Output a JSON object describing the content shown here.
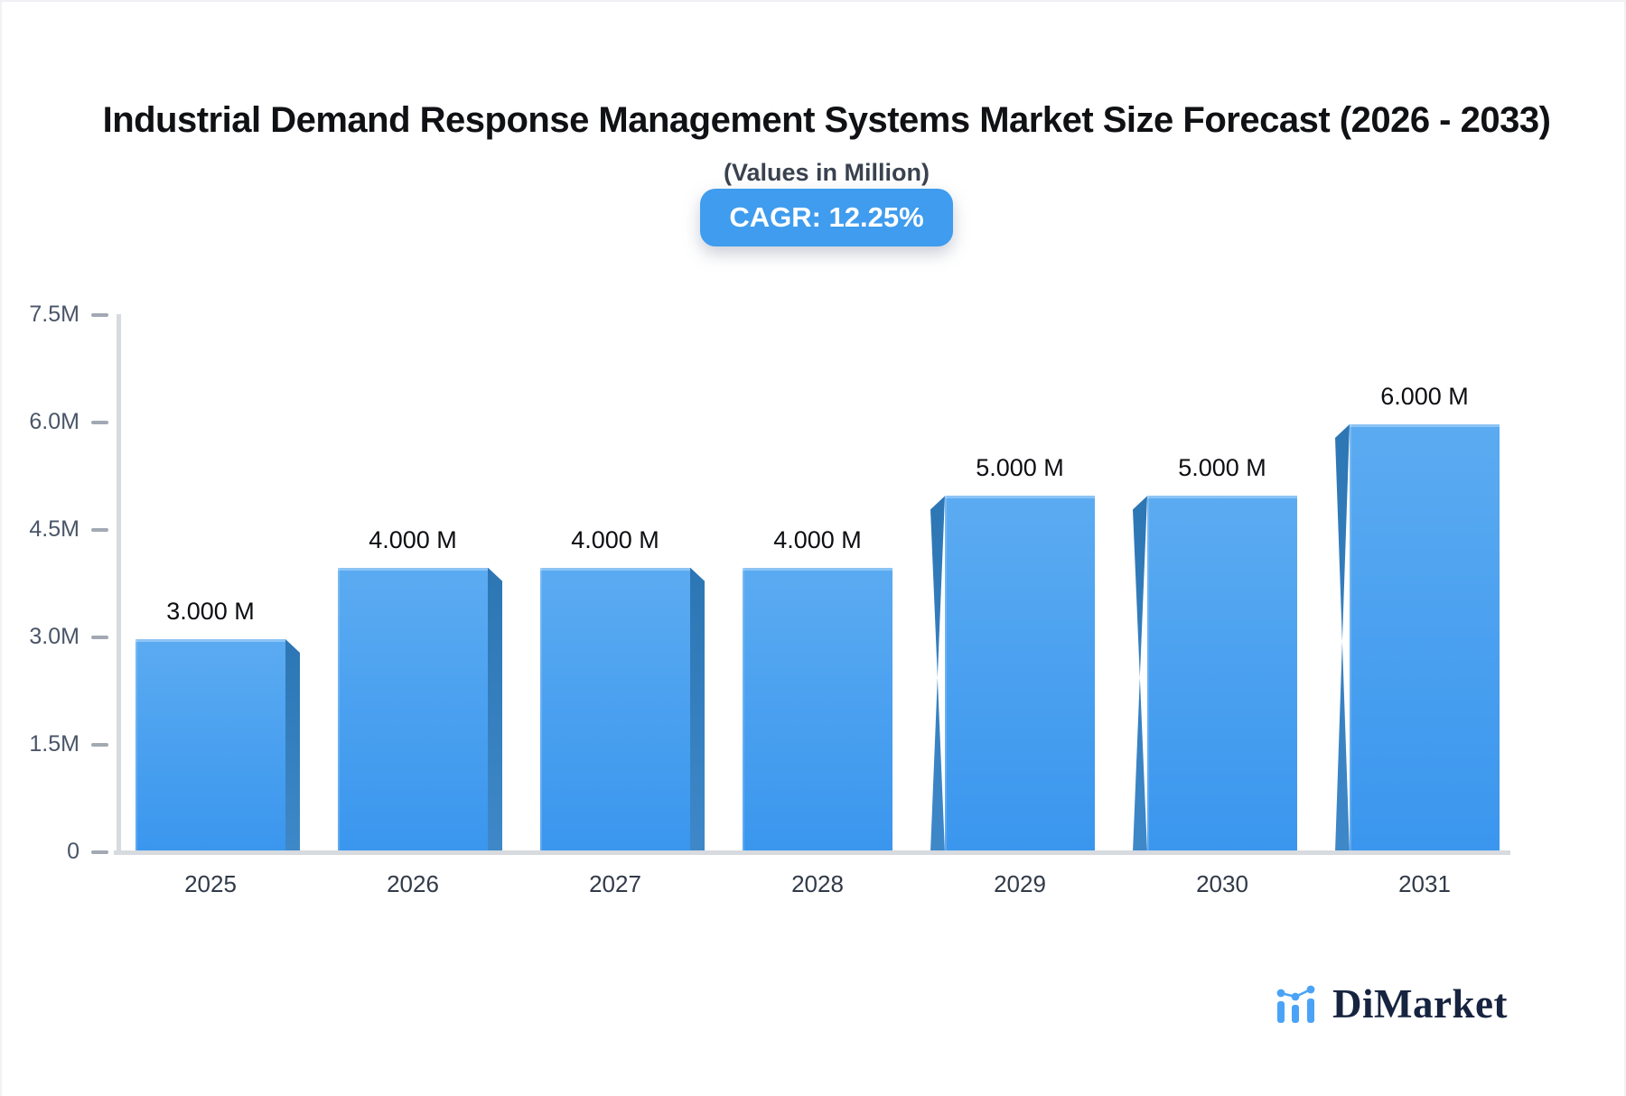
{
  "header": {
    "title": "Industrial Demand Response Management Systems Market Size Forecast (2026 - 2033)",
    "subtitle": "(Values in Million)",
    "cagr_badge": "CAGR: 12.25%"
  },
  "chart_data": {
    "type": "bar",
    "title": "Industrial Demand Response Management Systems Market Size Forecast (2026 - 2033)",
    "subtitle": "(Values in Million)",
    "unit": "Million",
    "categories": [
      "2025",
      "2026",
      "2027",
      "2028",
      "2029",
      "2030",
      "2031"
    ],
    "values": [
      3,
      4,
      4,
      4,
      5,
      5,
      6
    ],
    "value_labels": [
      "3.000 M",
      "4.000 M",
      "4.000 M",
      "4.000 M",
      "5.000 M",
      "5.000 M",
      "6.000 M"
    ],
    "ylim": [
      0,
      7.5
    ],
    "ytick_values": [
      0,
      1.5,
      3,
      4.5,
      6,
      7.5
    ],
    "ytick_labels": [
      "0",
      "1.5M",
      "3.0M",
      "4.5M",
      "6.0M",
      "7.5M"
    ],
    "xlabel": "",
    "ylabel": "",
    "grid": false,
    "legend": false,
    "bar_style": "3d-perspective"
  },
  "logo": {
    "name": "DiMarket",
    "icon": "bar-chart-icon"
  },
  "colors": {
    "bar_face_top": "#5babf1",
    "bar_face_bottom": "#3a96ee",
    "bar_side_top": "#2d76b4",
    "bar_side_bottom": "#3e88c9",
    "badge_bg": "#3f9cee",
    "badge_text": "#ffffff",
    "axis_line": "#d7dade",
    "tick_dash": "#a2a9b3",
    "title_text": "#101114",
    "subtitle_text": "#3a424f",
    "ylabel_text": "#4a5568",
    "xlabel_text": "#313a48",
    "value_text": "#0c0e12",
    "logo_text": "#172440",
    "logo_icon": "#4aa3f7"
  }
}
